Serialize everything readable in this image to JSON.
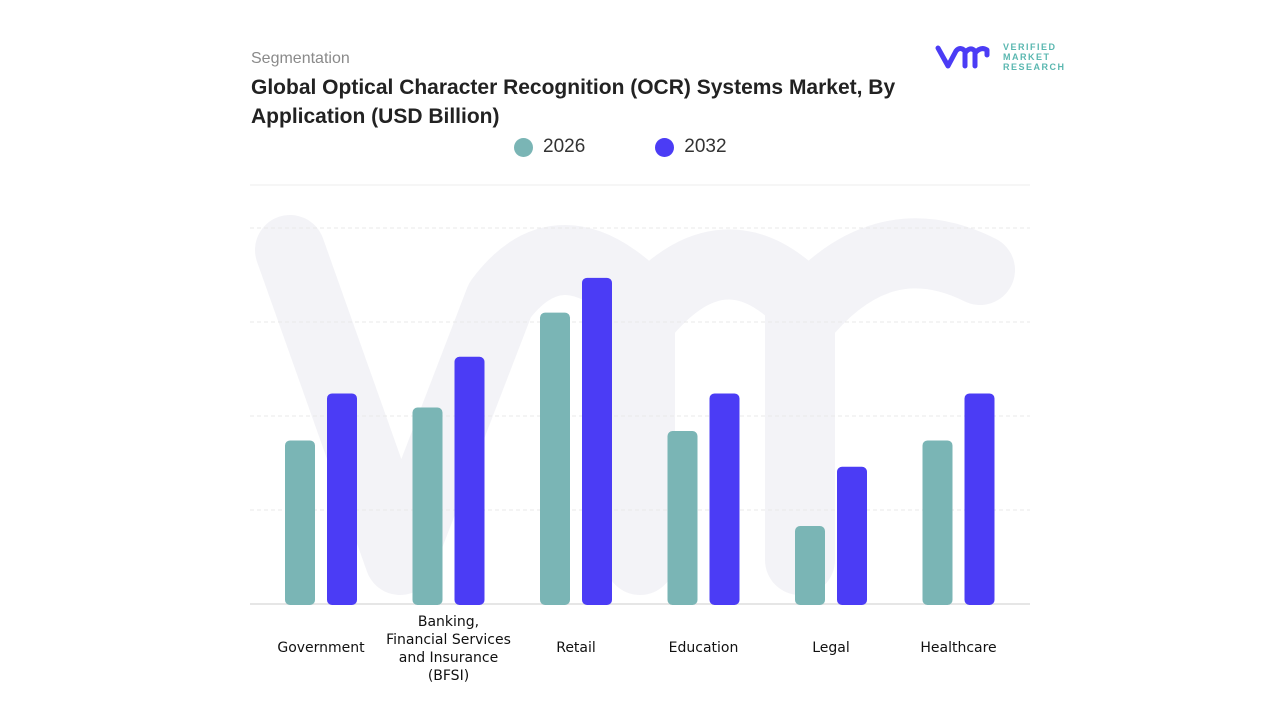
{
  "header": {
    "segment_label": "Segmentation",
    "title": "Global Optical Character Recognition (OCR) Systems Market, By Application (USD Billion)"
  },
  "logo": {
    "mark": "vmr",
    "line1": "VERIFIED",
    "line2": "MARKET",
    "line3": "RESEARCH"
  },
  "chart_data": {
    "type": "bar",
    "title": "Global Optical Character Recognition (OCR) Systems Market, By Application (USD Billion)",
    "categories": [
      "Government",
      "Banking, Financial Services and Insurance (BFSI)",
      "Retail",
      "Education",
      "Legal",
      "Healthcare"
    ],
    "category_lines": [
      [
        "Government"
      ],
      [
        "Banking,",
        "Financial Services",
        "and Insurance",
        "(BFSI)"
      ],
      [
        "Retail"
      ],
      [
        "Education"
      ],
      [
        "Legal"
      ],
      [
        "Healthcare"
      ]
    ],
    "series": [
      {
        "name": "2026",
        "color": "#7ab5b5",
        "values": [
          1.74,
          2.09,
          3.1,
          1.84,
          0.83,
          1.74
        ]
      },
      {
        "name": "2032",
        "color": "#4b3cf5",
        "values": [
          2.24,
          2.63,
          3.47,
          2.24,
          1.46,
          2.24
        ]
      }
    ],
    "xlabel": "",
    "ylabel": "",
    "ylim": [
      0,
      4
    ],
    "grid": true,
    "legend": "top-center",
    "note": "No y-axis tick labels shown; values are relative estimates in gridline units"
  }
}
